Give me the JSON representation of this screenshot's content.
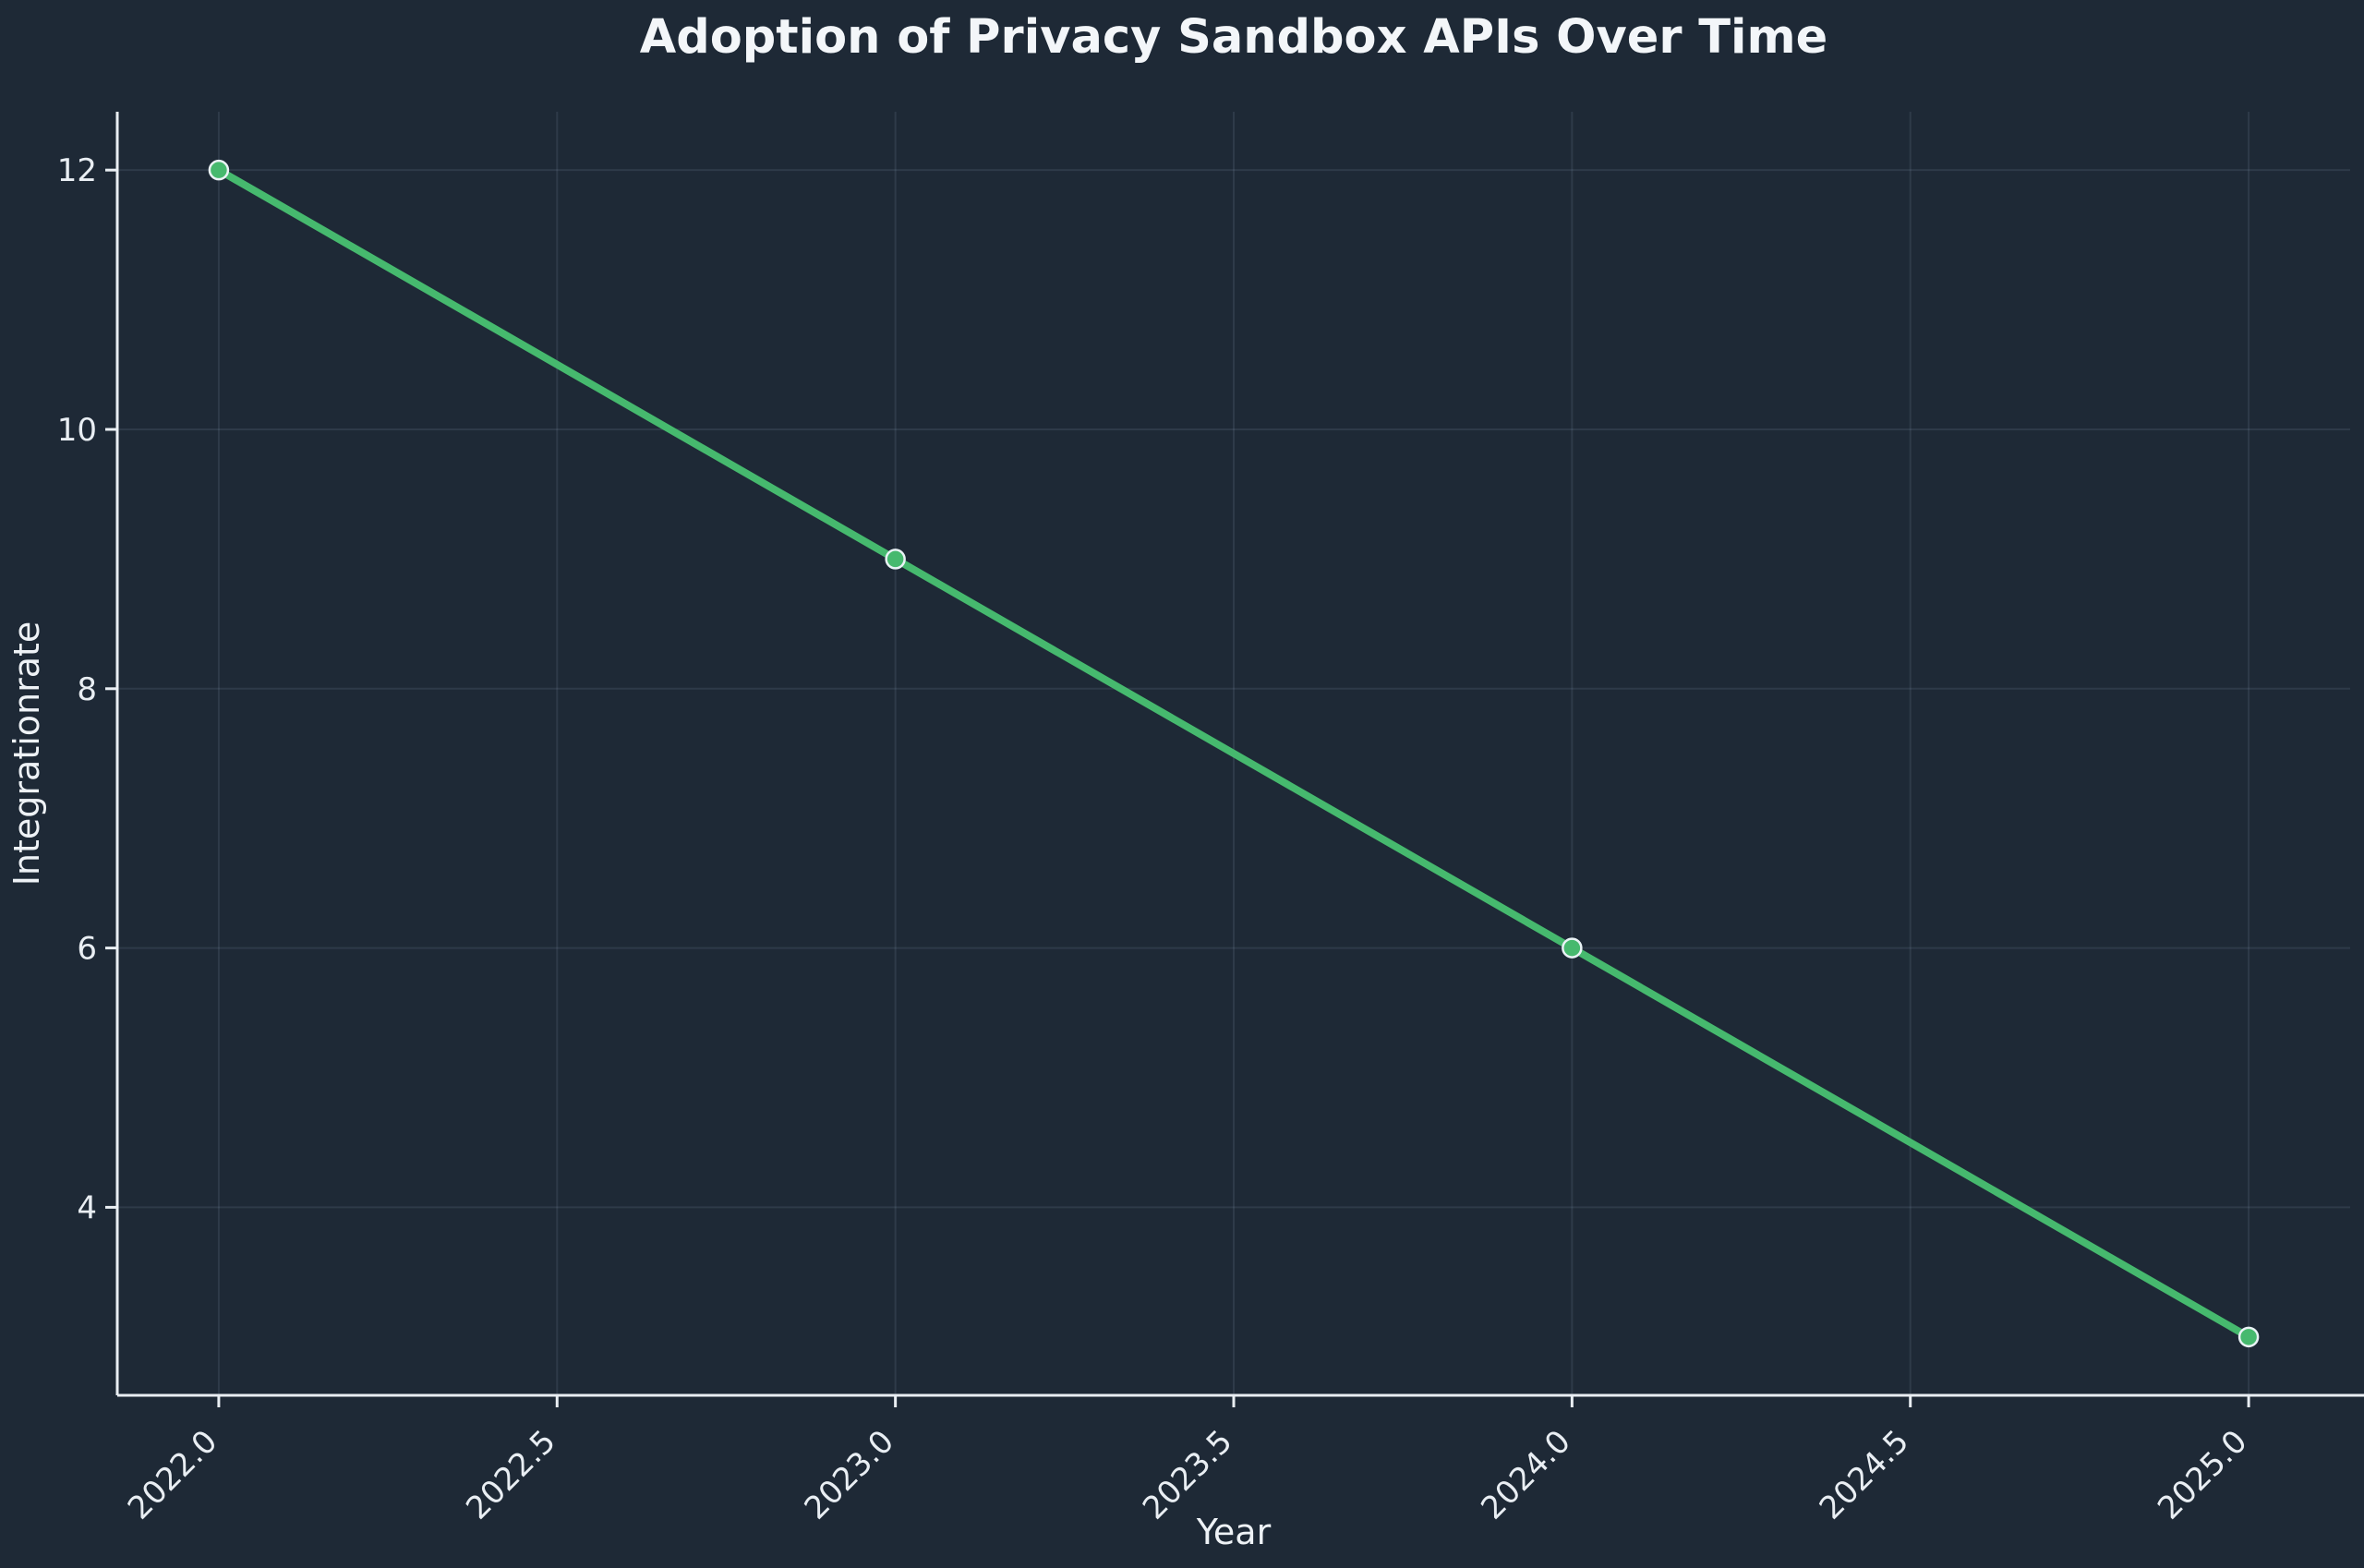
{
  "chart_data": {
    "type": "line",
    "title": "Adoption of Privacy Sandbox APIs Over Time",
    "xlabel": "Year",
    "ylabel": "Integrationrate",
    "x": [
      2022,
      2023,
      2024,
      2025
    ],
    "series": [
      {
        "name": "Integrationrate",
        "values": [
          12,
          9,
          6,
          3
        ],
        "color": "#46b96e",
        "marker_edge_color": "#e9f2f5",
        "marker": "circle"
      }
    ],
    "xlim": [
      2021.85,
      2025.15
    ],
    "ylim": [
      2.55,
      12.45
    ],
    "xticks": {
      "values": [
        2022.0,
        2022.5,
        2023.0,
        2023.5,
        2024.0,
        2024.5,
        2025.0
      ],
      "labels": [
        "2022.0",
        "2022.5",
        "2023.0",
        "2023.5",
        "2024.0",
        "2024.5",
        "2025.0"
      ]
    },
    "yticks": {
      "values": [
        4,
        6,
        8,
        10,
        12
      ],
      "labels": [
        "4",
        "6",
        "8",
        "10",
        "12"
      ]
    },
    "grid": true,
    "legend": false,
    "x_tick_rotation_deg": 45,
    "colors": {
      "background": "#1e2936",
      "grid": "rgba(158, 178, 198, 0.13)",
      "axis": "#e9eef3",
      "tick_text": "#e9eef3",
      "label_text": "#eef2f6",
      "title_text": "#f3f6f9"
    }
  }
}
